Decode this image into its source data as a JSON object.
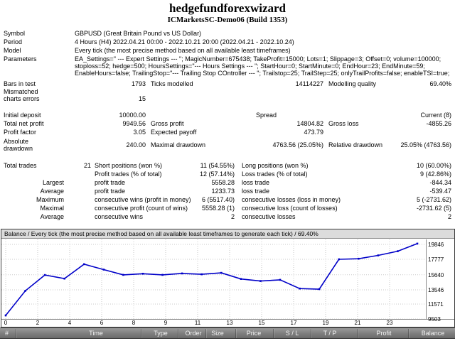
{
  "header": {
    "title": "hedgefundforexwizard",
    "subtitle": "ICMarketsSC-Demo06 (Build 1353)"
  },
  "summary": {
    "symbol_label": "Symbol",
    "symbol_value": "GBPUSD (Great Britain Pound vs US Dollar)",
    "period_label": "Period",
    "period_value": "4 Hours (H4) 2022.04.21 00:00 - 2022.10.21 20:00 (2022.04.21 - 2022.10.24)",
    "model_label": "Model",
    "model_value": "Every tick (the most precise method based on all available least timeframes)",
    "parameters_label": "Parameters",
    "parameters_value": "EA_Settings=\" --- Expert Settings --- \"; MagicNumber=675438; TakeProfit=15000; Lots=1; Slippage=3; Offset=0; volume=100000; stoploss=52; hedge=500; HoursSettings=\"--- Hours Settings --- \"; StartHour=0; StartMinute=0; EndHour=23; EndMinute=59; EnableHours=false; TrailingStop=\"--- Trailing Stop COntroller --- \"; Trailstop=25; TrailStep=25; onlyTrailProfits=false; enableTSI=true;",
    "bars_label": "Bars in test",
    "bars_value": "1793",
    "ticks_label": "Ticks modelled",
    "ticks_value": "14114227",
    "quality_label": "Modelling quality",
    "quality_value": "69.40%",
    "mismatch_label": "Mismatched charts errors",
    "mismatch_value": "15",
    "deposit_label": "Initial deposit",
    "deposit_value": "10000.00",
    "spread_label": "Spread",
    "spread_value": "Current (8)",
    "netprofit_label": "Total net profit",
    "netprofit_value": "9949.56",
    "grossprofit_label": "Gross profit",
    "grossprofit_value": "14804.82",
    "grossloss_label": "Gross loss",
    "grossloss_value": "-4855.26",
    "pf_label": "Profit factor",
    "pf_value": "3.05",
    "payoff_label": "Expected payoff",
    "payoff_value": "473.79",
    "absdd_label": "Absolute drawdown",
    "absdd_value": "240.00",
    "maxdd_label": "Maximal drawdown",
    "maxdd_value": "4763.56 (25.05%)",
    "reldd_label": "Relative drawdown",
    "reldd_value": "25.05% (4763.56)",
    "trades_label": "Total trades",
    "trades_value": "21",
    "short_label": "Short positions (won %)",
    "short_value": "11 (54.55%)",
    "long_label": "Long positions (won %)",
    "long_value": "10 (60.00%)",
    "profittrades_label": "Profit trades (% of total)",
    "profittrades_value": "12 (57.14%)",
    "losstrades_label": "Loss trades (% of total)",
    "losstrades_value": "9 (42.86%)",
    "largest_label": "Largest",
    "largest_profit_label": "profit trade",
    "largest_profit_value": "5558.28",
    "largest_loss_label": "loss trade",
    "largest_loss_value": "-844.34",
    "average_label": "Average",
    "average_profit_label": "profit trade",
    "average_profit_value": "1233.73",
    "average_loss_label": "loss trade",
    "average_loss_value": "-539.47",
    "maximum_label": "Maximum",
    "maxconswins_label": "consecutive wins (profit in money)",
    "maxconswins_value": "6 (5517.40)",
    "maxconsloss_label": "consecutive losses (loss in money)",
    "maxconsloss_value": "5 (-2731.62)",
    "maximal_label": "Maximal",
    "consprofit_label": "consecutive profit (count of wins)",
    "consprofit_value": "5558.28 (1)",
    "consloss_label": "consecutive loss (count of losses)",
    "consloss_value": "-2731.62 (5)",
    "avgcons_label": "Average",
    "avgconswins_label": "consecutive wins",
    "avgconswins_value": "2",
    "avgconsloss_label": "consecutive losses",
    "avgconsloss_value": "2"
  },
  "chart_data": {
    "type": "line",
    "title": "Balance / Every tick (the most precise method based on all available least timeframes to generate each tick) / 69.40%",
    "xlabel": "",
    "ylabel": "Balance",
    "ylim": [
      9503,
      20100
    ],
    "grid": true,
    "line_color": "#0000C8",
    "y_ticks": [
      19846,
      17777,
      15640,
      13546,
      11571,
      9503
    ],
    "x_ticks": [
      0,
      2,
      4,
      6,
      8,
      9,
      11,
      13,
      15,
      17,
      19,
      21,
      23
    ],
    "series": [
      {
        "name": "Balance",
        "x": [
          0,
          1,
          2,
          3,
          4,
          5,
          6,
          7,
          8,
          9,
          10,
          11,
          12,
          13,
          14,
          15,
          16,
          17,
          18,
          19,
          20,
          21
        ],
        "values": [
          10000,
          13400,
          15600,
          15100,
          17100,
          16350,
          15620,
          15780,
          15620,
          15820,
          15700,
          15900,
          15050,
          14760,
          14930,
          13720,
          13640,
          17780,
          17860,
          18320,
          18900,
          19949.56
        ]
      }
    ]
  },
  "table": {
    "columns": [
      "#",
      "Time",
      "Type",
      "Order",
      "Size",
      "Price",
      "S / L",
      "T / P",
      "Profit",
      "Balance"
    ]
  }
}
